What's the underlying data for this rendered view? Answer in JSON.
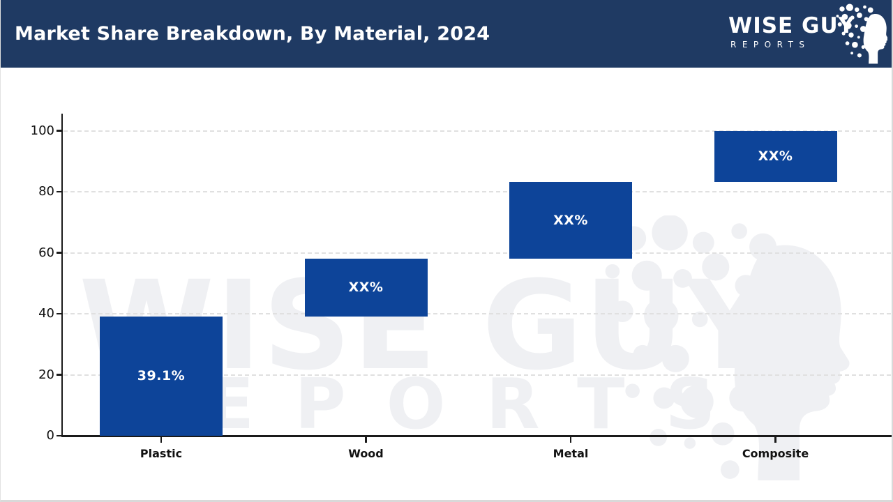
{
  "header": {
    "title": "Market Share Breakdown, By Material, 2024",
    "logo": {
      "line1": "WISE GUY",
      "line2": "REPORTS"
    }
  },
  "watermark": {
    "line1": "WISE GUY",
    "line2": "REPORTS"
  },
  "colors": {
    "header_bg": "#1f3a63",
    "bar": "#0d4499",
    "bar_label": "#ffffff",
    "grid": "#e0e0e0",
    "axis": "#1a1a1a",
    "watermark": "#eff0f3"
  },
  "chart_data": {
    "type": "bar",
    "subtype": "waterfall",
    "title": "Market Share Breakdown, By Material, 2024",
    "categories": [
      "Plastic",
      "Wood",
      "Metal",
      "Composite"
    ],
    "segments": [
      {
        "category": "Plastic",
        "start": 0,
        "end": 39.1,
        "value": 39.1,
        "label": "39.1%"
      },
      {
        "category": "Wood",
        "start": 39.1,
        "end": 58.1,
        "value": 19.0,
        "label": "XX%"
      },
      {
        "category": "Metal",
        "start": 58.1,
        "end": 83.2,
        "value": 25.1,
        "label": "XX%"
      },
      {
        "category": "Composite",
        "start": 83.2,
        "end": 100,
        "value": 16.8,
        "label": "XX%"
      }
    ],
    "yticks": [
      0,
      20,
      40,
      60,
      80,
      100
    ],
    "ylim": [
      0,
      105
    ],
    "xlabel": "",
    "ylabel": "",
    "grid": "horizontal-dashed",
    "legend": "none"
  }
}
